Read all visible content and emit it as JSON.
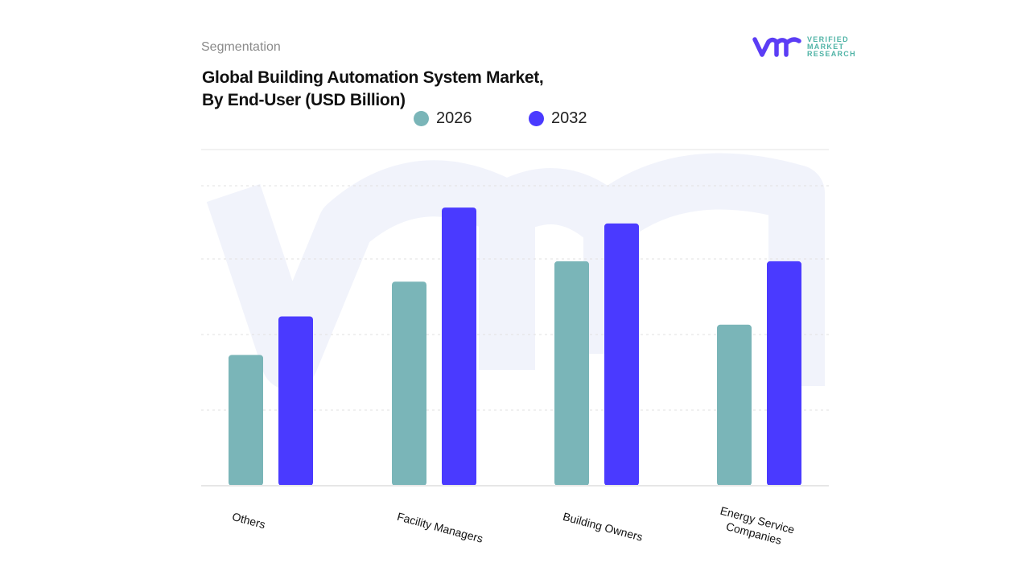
{
  "header": {
    "section": "Segmentation",
    "title_line1": "Global Building Automation System Market,",
    "title_line2": "By End-User (USD Billion)"
  },
  "logo": {
    "mark": "vmr",
    "line1": "VERIFIED",
    "line2": "MARKET",
    "line3": "RESEARCH"
  },
  "chart_data": {
    "type": "bar",
    "title": "Global Building Automation System Market, By End-User (USD Billion)",
    "categories": [
      "Others",
      "Facility Managers",
      "Building Owners",
      "Energy Service Companies"
    ],
    "series": [
      {
        "name": "2026",
        "color": "#7ab5b8",
        "values": [
          1.73,
          2.7,
          2.97,
          2.13
        ]
      },
      {
        "name": "2032",
        "color": "#4a3aff",
        "values": [
          2.24,
          3.68,
          3.47,
          2.97
        ]
      }
    ],
    "ylim": [
      0,
      4
    ],
    "grid": true,
    "legend": "top-center",
    "xlabel": "",
    "ylabel": ""
  }
}
